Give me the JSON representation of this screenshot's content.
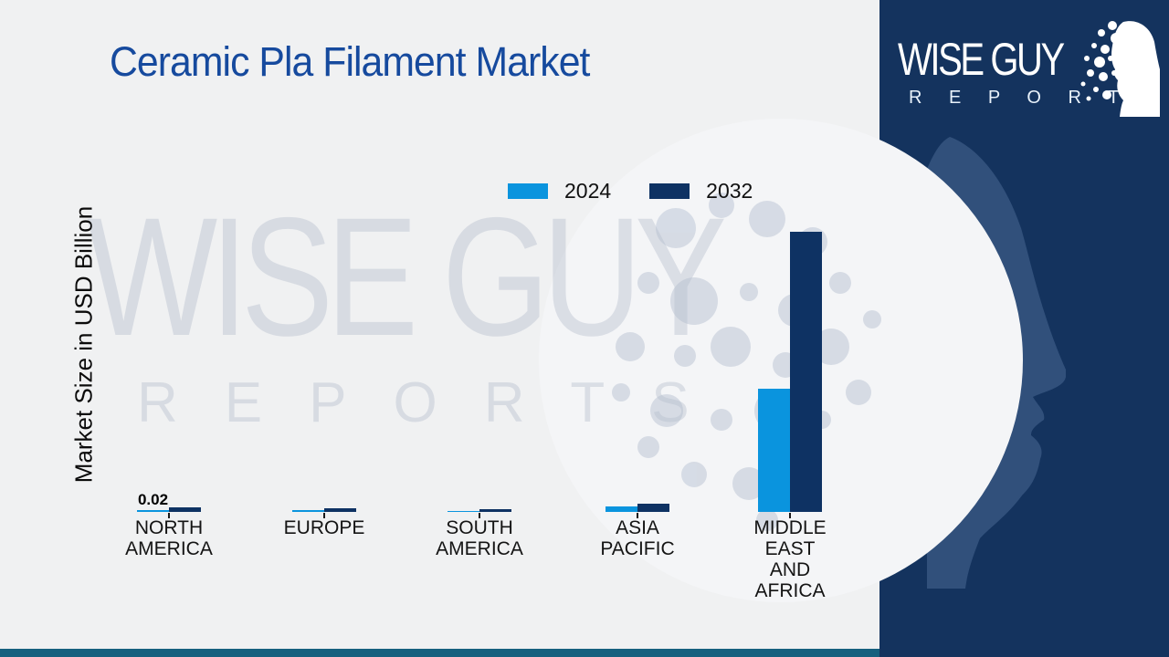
{
  "title": "Ceramic Pla Filament Market",
  "logo": {
    "brand": "WISE GUY",
    "sub": "R E P O R T S"
  },
  "watermark": {
    "line1": "WISE GUY",
    "line2": "REPORTS"
  },
  "colors": {
    "series_2024": "#0a94de",
    "series_2032": "#0e3263",
    "brand_panel_navy": "#14335e",
    "bottom_strip_teal": "#16607e",
    "title_blue": "#164a9e",
    "background": "#f0f1f2"
  },
  "chart_data": {
    "type": "bar",
    "title": "Ceramic Pla Filament Market",
    "xlabel": "",
    "ylabel": "Market Size in USD Billion",
    "categories": [
      "NORTH AMERICA",
      "EUROPE",
      "SOUTH AMERICA",
      "ASIA PACIFIC",
      "MIDDLE EAST AND AFRICA"
    ],
    "category_lines": [
      [
        "NORTH",
        "AMERICA"
      ],
      [
        "EUROPE"
      ],
      [
        "SOUTH",
        "AMERICA"
      ],
      [
        "ASIA",
        "PACIFIC"
      ],
      [
        "MIDDLE",
        "EAST",
        "AND",
        "AFRICA"
      ]
    ],
    "series": [
      {
        "name": "2024",
        "color": "#0a94de",
        "values": [
          0.02,
          0.016,
          0.012,
          0.05,
          1.08
        ]
      },
      {
        "name": "2032",
        "color": "#0e3263",
        "values": [
          0.04,
          0.03,
          0.025,
          0.07,
          2.46
        ]
      }
    ],
    "value_labels": [
      {
        "series_index": 0,
        "category_index": 0,
        "text": "0.02"
      }
    ],
    "legend_position": "top-center",
    "grid": false,
    "axis_line": false,
    "note": "Only the NORTH AMERICA 2024 bar carries a printed value (0.02); other values estimated from bar heights."
  }
}
